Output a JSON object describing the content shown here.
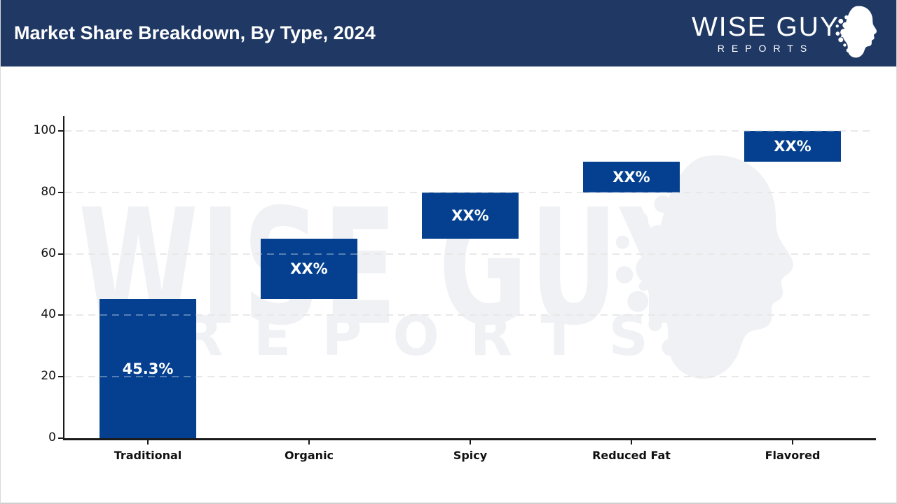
{
  "header": {
    "title": "Market Share Breakdown, By Type, 2024",
    "logo": {
      "line1": "WISE GUY",
      "line2": "REPORTS"
    }
  },
  "watermark": {
    "line1": "WISE GUY",
    "line2": "REPORTS"
  },
  "chart_data": {
    "type": "bar",
    "subtype": "waterfall",
    "title": "Market Share Breakdown, By Type, 2024",
    "categories": [
      "Traditional",
      "Organic",
      "Spicy",
      "Reduced Fat",
      "Flavored"
    ],
    "segments": [
      {
        "category": "Traditional",
        "start": 0,
        "end": 45.3,
        "label": "45.3%"
      },
      {
        "category": "Organic",
        "start": 45.3,
        "end": 65,
        "label": "XX%"
      },
      {
        "category": "Spicy",
        "start": 65,
        "end": 80,
        "label": "XX%"
      },
      {
        "category": "Reduced Fat",
        "start": 80,
        "end": 90,
        "label": "XX%"
      },
      {
        "category": "Flavored",
        "start": 90,
        "end": 100,
        "label": "XX%"
      }
    ],
    "xlabel": "",
    "ylabel": "",
    "ylim": [
      0,
      100
    ],
    "yticks": [
      0,
      20,
      40,
      60,
      80,
      100
    ],
    "grid": "horizontal-dashed",
    "legend": "none",
    "bar_color": "#04408f",
    "bar_label_color": "#ffffff"
  },
  "colors": {
    "header_bg": "#1f3864",
    "bar": "#04408f",
    "axis": "#1a1a1a",
    "gridline": "#dcdcdc",
    "watermark": "#eff1f4",
    "border": "#d9d9d9"
  }
}
